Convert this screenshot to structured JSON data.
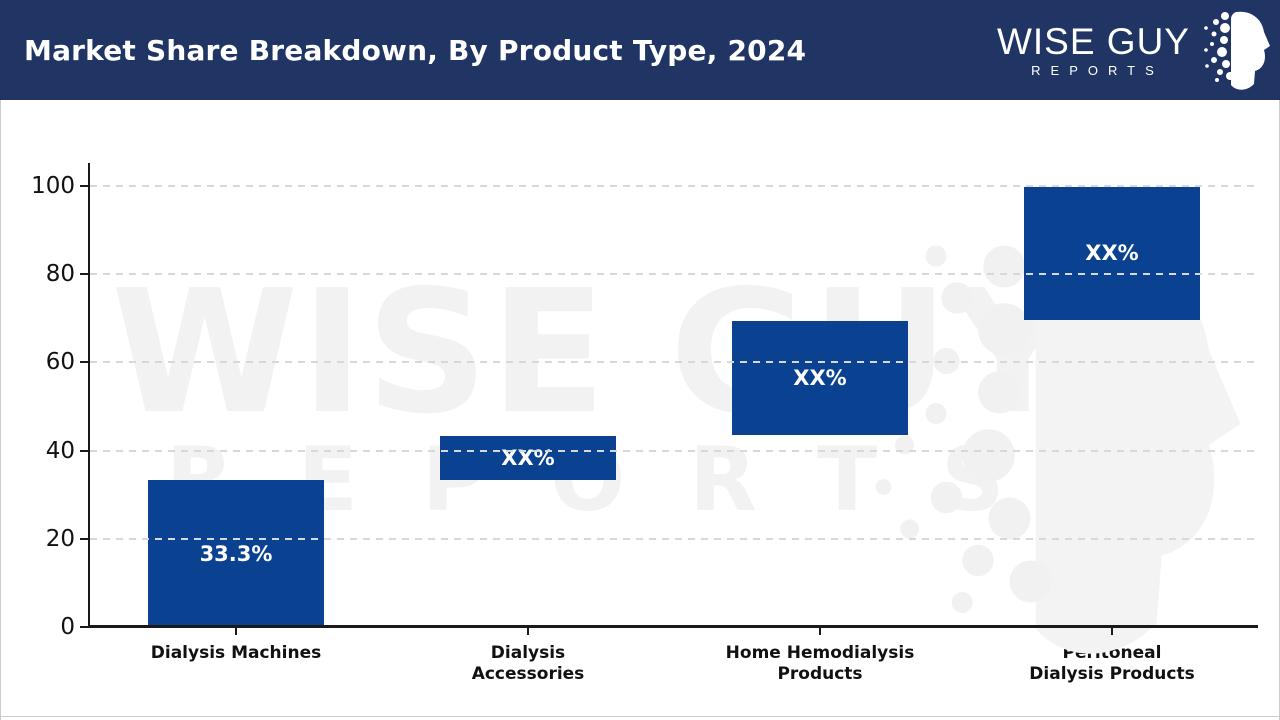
{
  "header": {
    "title": "Market Share Breakdown, By Product Type, 2024",
    "logo": {
      "name_line": "WISE GUY",
      "sub_line": "REPORTS"
    }
  },
  "watermark": {
    "line1": "WISE GUY",
    "line2": "REPORTS"
  },
  "chart_data": {
    "type": "bar",
    "subtype": "floating-segment (waterfall-style market share)",
    "title": "Market Share Breakdown, By Product Type, 2024",
    "categories": [
      "Dialysis Machines",
      "Dialysis Accessories",
      "Home Hemodialysis Products",
      "Peritoneal Dialysis Products"
    ],
    "category_label_lines": [
      [
        "Dialysis Machines"
      ],
      [
        "Dialysis",
        "Accessories"
      ],
      [
        "Home Hemodialysis",
        "Products"
      ],
      [
        "Peritoneal",
        "Dialysis Products"
      ]
    ],
    "bars": [
      {
        "category": "Dialysis Machines",
        "start": 0,
        "end": 33.3,
        "label": "33.3%"
      },
      {
        "category": "Dialysis Accessories",
        "start": 33.3,
        "end": 43.3,
        "label": "XX%"
      },
      {
        "category": "Home Hemodialysis Products",
        "start": 43.5,
        "end": 69.4,
        "label": "XX%"
      },
      {
        "category": "Peritoneal Dialysis Products",
        "start": 69.6,
        "end": 99.8,
        "label": "XX%"
      }
    ],
    "xlabel": "",
    "ylabel": "",
    "ylim": [
      0,
      100
    ],
    "yticks": [
      0,
      20,
      40,
      60,
      80,
      100
    ],
    "grid": "horizontal dashed",
    "legend": "none",
    "colors": {
      "bar": "#0a4191",
      "grid": "#d8d8d8",
      "axis": "#1a1a1a",
      "value_label": "#ffffff",
      "header_bg": "#203564",
      "watermark": "#f2f2f2"
    }
  }
}
